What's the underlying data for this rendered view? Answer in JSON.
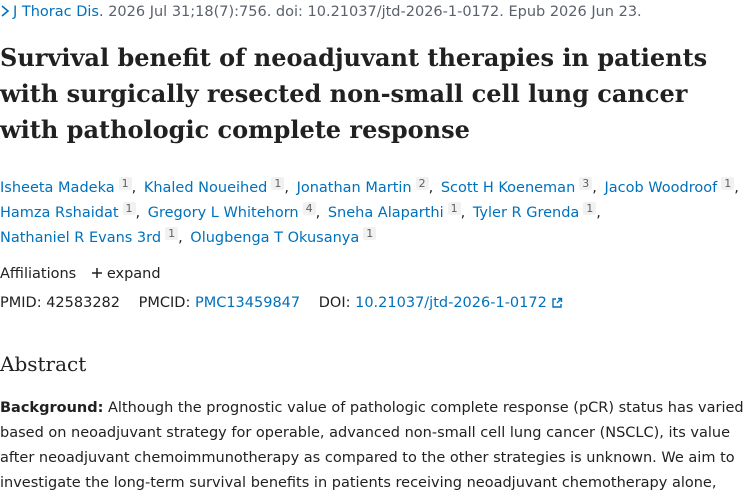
{
  "citation": {
    "journal": "J Thorac Dis.",
    "details": "2026 Jul 31;18(7):756. doi: 10.21037/jtd-2026-1-0172. Epub 2026 Jun 23."
  },
  "title": "Survival benefit of neoadjuvant therapies in patients with surgically resected non-small cell lung cancer with pathologic complete response",
  "authors": [
    {
      "name": "Isheeta Madeka",
      "affiliation": "1"
    },
    {
      "name": "Khaled Noueihed",
      "affiliation": "1"
    },
    {
      "name": "Jonathan Martin",
      "affiliation": "2"
    },
    {
      "name": "Scott H Koeneman",
      "affiliation": "3"
    },
    {
      "name": "Jacob Woodroof",
      "affiliation": "1"
    },
    {
      "name": "Hamza Rshaidat",
      "affiliation": "1"
    },
    {
      "name": "Gregory L Whitehorn",
      "affiliation": "4"
    },
    {
      "name": "Sneha Alaparthi",
      "affiliation": "1"
    },
    {
      "name": "Tyler R Grenda",
      "affiliation": "1"
    },
    {
      "name": "Nathaniel R Evans 3rd",
      "affiliation": "1"
    },
    {
      "name": "Olugbenga T Okusanya",
      "affiliation": "1"
    }
  ],
  "affiliations": {
    "label": "Affiliations",
    "toggle": "expand"
  },
  "identifiers": {
    "pmid": {
      "label": "PMID:",
      "value": "42583282"
    },
    "pmcid": {
      "label": "PMCID:",
      "value": "PMC13459847"
    },
    "doi": {
      "label": "DOI:",
      "value": "10.21037/jtd-2026-1-0172"
    }
  },
  "abstract": {
    "heading": "Abstract",
    "background_label": "Background:",
    "background_text": "Although the prognostic value of pathologic complete response (pCR) status has varied based on neoadjuvant strategy for operable, advanced non-small cell lung cancer (NSCLC), its value after neoadjuvant chemoimmunotherapy as compared to the other strategies is unknown. We aim to investigate the long-term survival benefits in patients receiving neoadjuvant chemotherapy alone,"
  }
}
